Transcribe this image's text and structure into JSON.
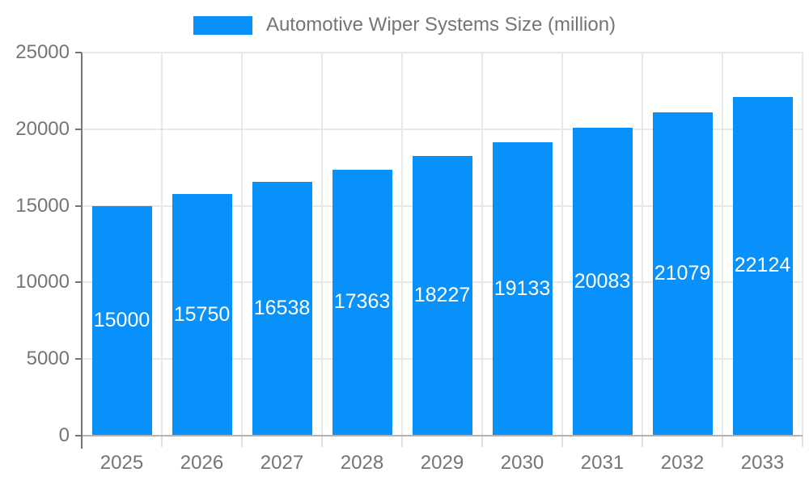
{
  "chart": {
    "colors": {
      "bar": "#0890fb",
      "bar_label": "#ffffff",
      "axis_text": "#757575",
      "axis_line": "#757575",
      "baseline": "#b3b3b3",
      "grid": "#e8e8e8",
      "x_tick": "#e0e0e0",
      "background": "#ffffff"
    }
  },
  "chart_data": {
    "type": "bar",
    "title": "Automotive Wiper Systems Size (million)",
    "categories": [
      "2025",
      "2026",
      "2027",
      "2028",
      "2029",
      "2030",
      "2031",
      "2032",
      "2033"
    ],
    "series": [
      {
        "name": "Automotive Wiper Systems Size (million)",
        "values": [
          15000,
          15750,
          16538,
          17363,
          18227,
          19133,
          20083,
          21079,
          22124
        ]
      }
    ],
    "xlabel": "",
    "ylabel": "",
    "ylim": [
      0,
      25000
    ],
    "yticks": [
      0,
      5000,
      10000,
      15000,
      20000,
      25000
    ],
    "grid": true,
    "legend_position": "top",
    "value_labels": "inside-center"
  }
}
